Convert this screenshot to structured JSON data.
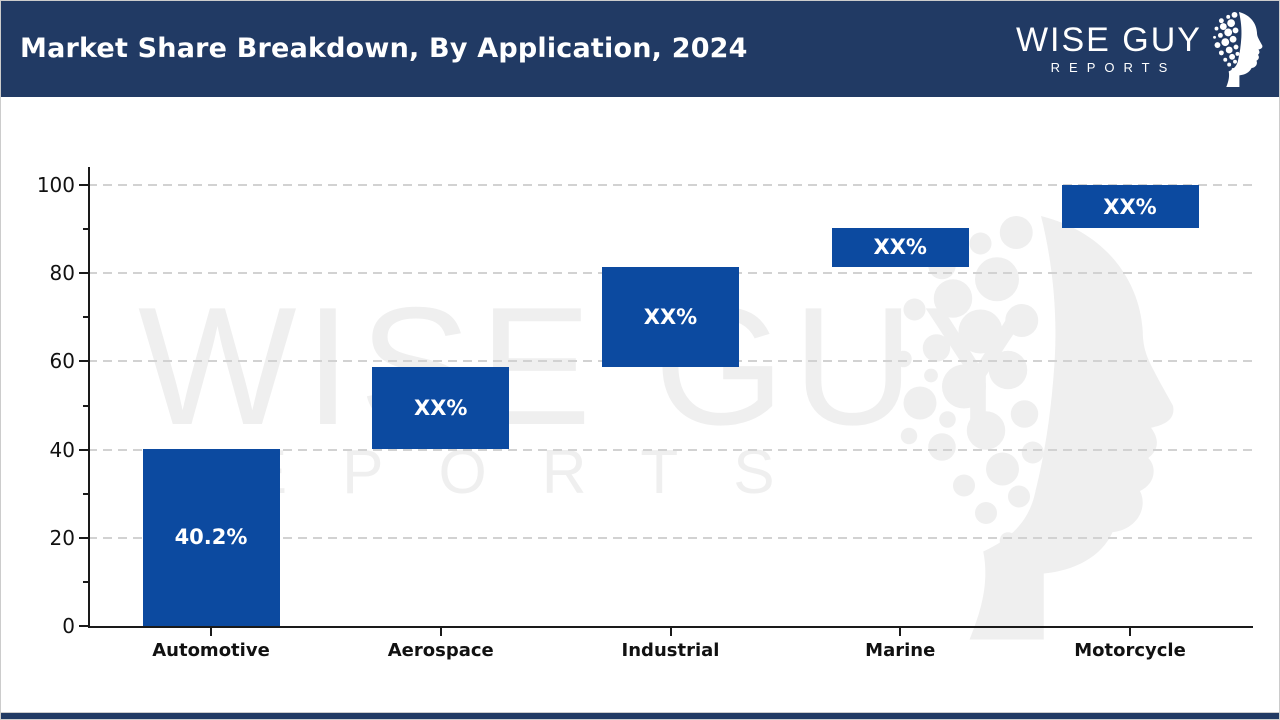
{
  "header": {
    "title": "Market Share Breakdown, By Application, 2024",
    "brand_line1": "WISE GUY",
    "brand_line2": "REPORTS"
  },
  "watermark": {
    "line1": "WISE GUY",
    "line2": "REPORTS"
  },
  "colors": {
    "header_bg": "#213a64",
    "footer_bg": "#213a64",
    "bar": "#0c4aa0",
    "bar_label": "#ffffff",
    "grid": "#d2d2d2",
    "axis": "#1a1a1a",
    "watermark": "#efefef"
  },
  "chart_data": {
    "type": "bar",
    "subtype": "waterfall",
    "title": "Market Share Breakdown, By Application, 2024",
    "categories": [
      "Automotive",
      "Aerospace",
      "Industrial",
      "Marine",
      "Motorcycle"
    ],
    "segments": [
      {
        "category": "Automotive",
        "start": 0,
        "end": 40.2,
        "label": "40.2%"
      },
      {
        "category": "Aerospace",
        "start": 40.2,
        "end": 58.8,
        "label": "XX%"
      },
      {
        "category": "Industrial",
        "start": 58.8,
        "end": 81.5,
        "label": "XX%"
      },
      {
        "category": "Marine",
        "start": 81.5,
        "end": 90.2,
        "label": "XX%"
      },
      {
        "category": "Motorcycle",
        "start": 90.2,
        "end": 100,
        "label": "XX%"
      }
    ],
    "ylim": [
      0,
      100
    ],
    "yticks": [
      0,
      20,
      40,
      60,
      80,
      100
    ],
    "minor_yticks": [
      10,
      30,
      50,
      70,
      90
    ],
    "grid": "horizontal-dashed",
    "legend": null,
    "xlabel": "",
    "ylabel": ""
  }
}
